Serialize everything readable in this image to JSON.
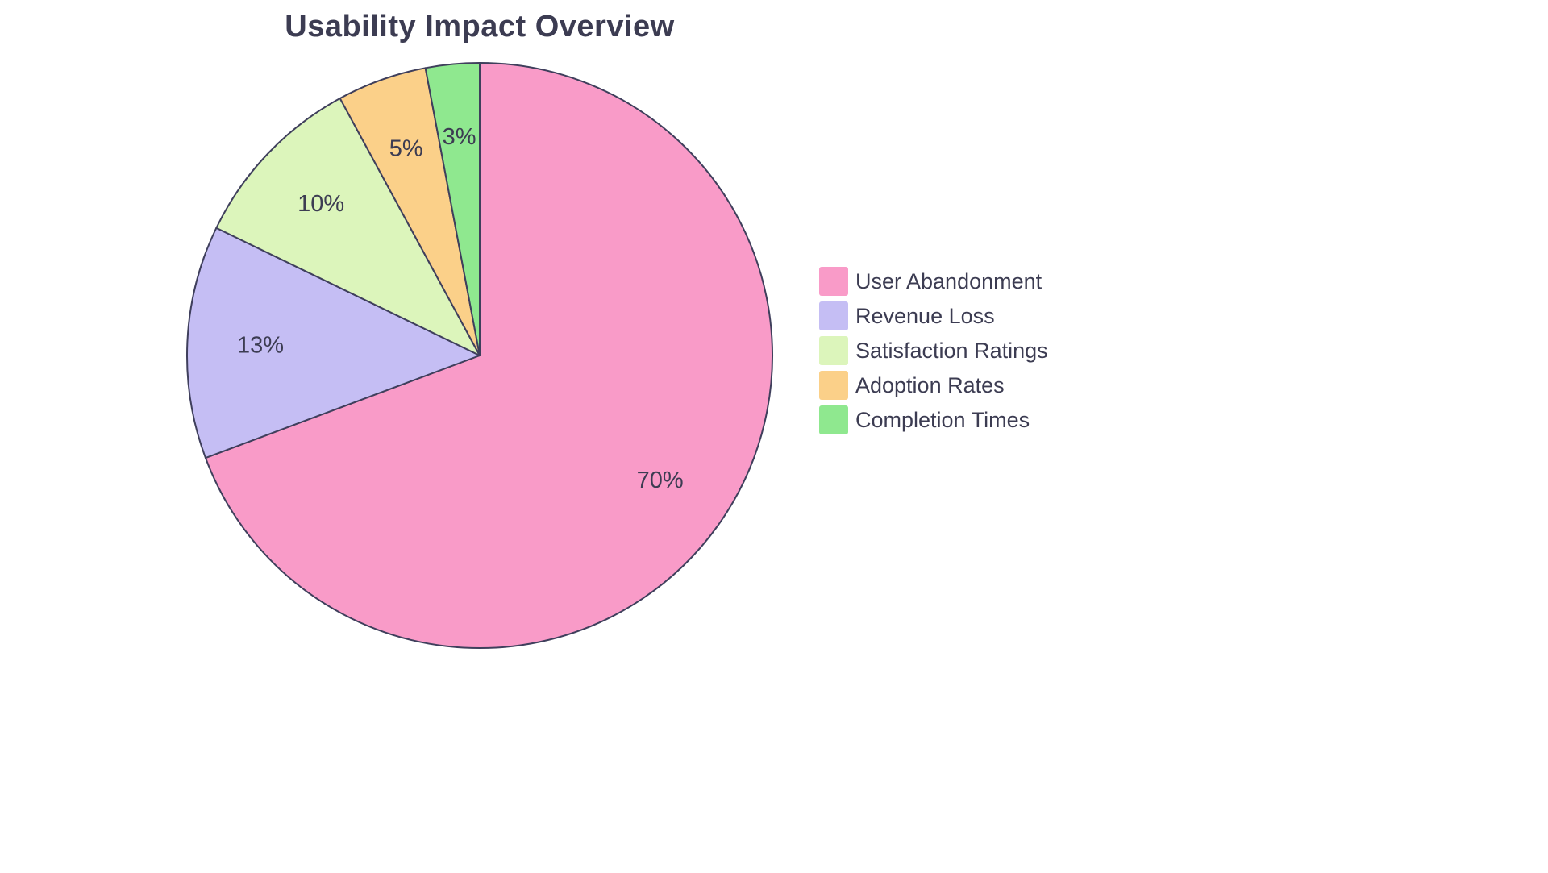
{
  "title": "Usability Impact Overview",
  "colors": {
    "background": "#ffffff",
    "text": "#3c3c52",
    "slice_stroke": "#3f3f5c"
  },
  "chart_data": {
    "type": "pie",
    "title": "Usability Impact Overview",
    "start_angle_deg": -90,
    "direction": "clockwise",
    "legend_position": "right",
    "labels_unit": "%",
    "slices": [
      {
        "label": "User Abandonment",
        "value": 70,
        "display": "70%",
        "color": "#F99BC8"
      },
      {
        "label": "Revenue Loss",
        "value": 13,
        "display": "13%",
        "color": "#C5BEF4"
      },
      {
        "label": "Satisfaction Ratings",
        "value": 10,
        "display": "10%",
        "color": "#DCF5BB"
      },
      {
        "label": "Adoption Rates",
        "value": 5,
        "display": "5%",
        "color": "#FBD089"
      },
      {
        "label": "Completion Times",
        "value": 3,
        "display": "3%",
        "color": "#8FE88F"
      }
    ]
  }
}
